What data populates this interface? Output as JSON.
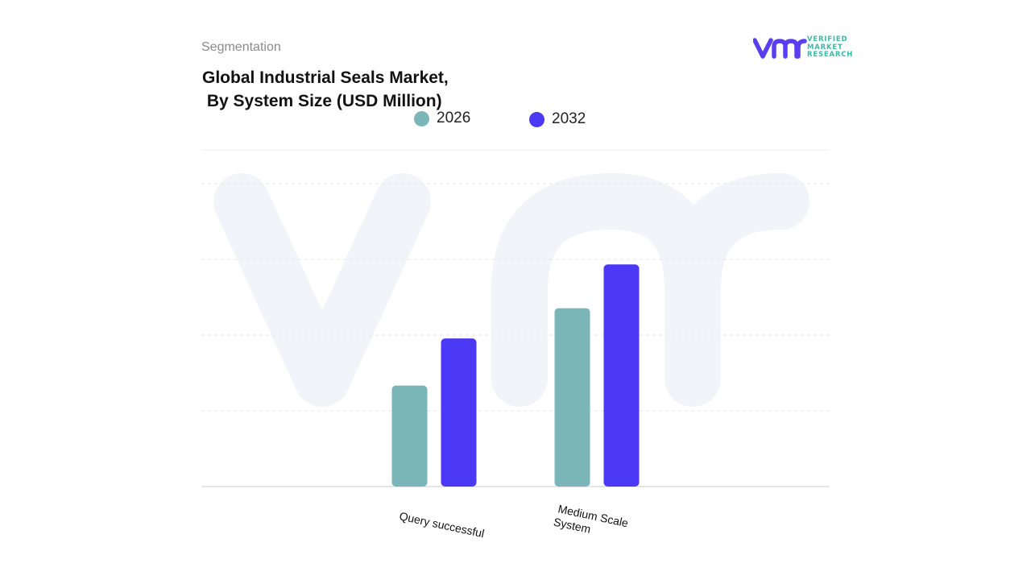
{
  "header": {
    "section": "Segmentation",
    "title": "Global Industrial Seals Market,\n By System Size (USD Million)"
  },
  "logo": {
    "mark": "vmr",
    "lines": [
      "VERIFIED",
      "MARKET",
      "RESEARCH"
    ],
    "icon": "vmr-logo-icon"
  },
  "colors": {
    "s2026": "#7ab5b8",
    "s2032": "#4b39f5",
    "grid": "#e6e6e6",
    "watermark": "#f3f4fa"
  },
  "chart_data": {
    "type": "bar",
    "title": "Global Industrial Seals Market, By System Size (USD Million)",
    "xlabel": "",
    "ylabel": "",
    "categories": [
      "Query successful",
      "Medium Scale System"
    ],
    "series": [
      {
        "name": "2026",
        "values": [
          1.5,
          2.65
        ]
      },
      {
        "name": "2032",
        "values": [
          2.2,
          3.3
        ]
      }
    ],
    "ylim": [
      0,
      4.5
    ],
    "grid": true,
    "legend": "top-center"
  }
}
